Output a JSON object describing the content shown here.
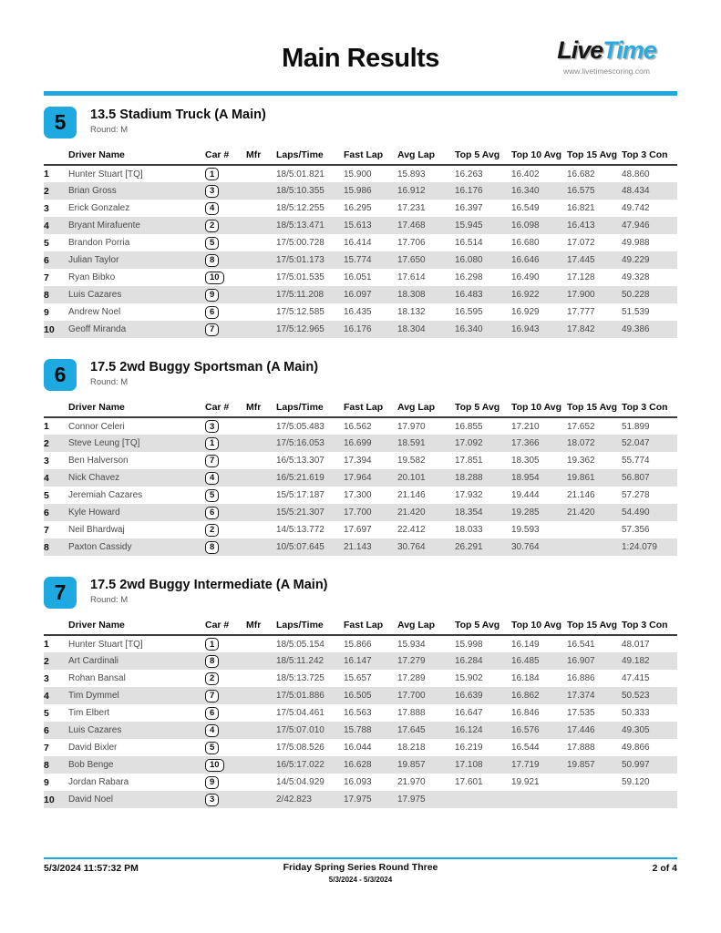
{
  "header": {
    "title": "Main Results",
    "logo": {
      "live": "Live",
      "time": "Time",
      "tagline": "www.livetimescoring.com"
    }
  },
  "colors": {
    "accent_blue": "#1fa7de",
    "logo_blue": "#29abe2",
    "row_stripe": "#e0e0e0"
  },
  "columns": [
    {
      "key": "driver",
      "label": "Driver Name"
    },
    {
      "key": "car",
      "label": "Car #"
    },
    {
      "key": "mfr",
      "label": "Mfr"
    },
    {
      "key": "laps",
      "label": "Laps/Time"
    },
    {
      "key": "fast",
      "label": "Fast Lap"
    },
    {
      "key": "avg",
      "label": "Avg Lap"
    },
    {
      "key": "top5",
      "label": "Top 5 Avg"
    },
    {
      "key": "top10",
      "label": "Top 10 Avg"
    },
    {
      "key": "top15",
      "label": "Top 15 Avg"
    },
    {
      "key": "top3",
      "label": "Top 3 Con"
    }
  ],
  "sections": [
    {
      "number": "5",
      "title": "13.5 Stadium Truck (A Main)",
      "round": "Round: M",
      "rows": [
        {
          "pos": "1",
          "driver": "Hunter Stuart [TQ]",
          "car": "1",
          "mfr": "",
          "laps": "18/5:01.821",
          "fast": "15.900",
          "avg": "15.893",
          "top5": "16.263",
          "top10": "16.402",
          "top15": "16.682",
          "top3": "48.860"
        },
        {
          "pos": "2",
          "driver": "Brian Gross",
          "car": "3",
          "mfr": "",
          "laps": "18/5:10.355",
          "fast": "15.986",
          "avg": "16.912",
          "top5": "16.176",
          "top10": "16.340",
          "top15": "16.575",
          "top3": "48.434"
        },
        {
          "pos": "3",
          "driver": "Erick Gonzalez",
          "car": "4",
          "mfr": "",
          "laps": "18/5:12.255",
          "fast": "16.295",
          "avg": "17.231",
          "top5": "16.397",
          "top10": "16.549",
          "top15": "16.821",
          "top3": "49.742"
        },
        {
          "pos": "4",
          "driver": "Bryant Mirafuente",
          "car": "2",
          "mfr": "",
          "laps": "18/5:13.471",
          "fast": "15.613",
          "avg": "17.468",
          "top5": "15.945",
          "top10": "16.098",
          "top15": "16.413",
          "top3": "47.946"
        },
        {
          "pos": "5",
          "driver": "Brandon Porria",
          "car": "5",
          "mfr": "",
          "laps": "17/5:00.728",
          "fast": "16.414",
          "avg": "17.706",
          "top5": "16.514",
          "top10": "16.680",
          "top15": "17.072",
          "top3": "49.988"
        },
        {
          "pos": "6",
          "driver": "Julian Taylor",
          "car": "8",
          "mfr": "",
          "laps": "17/5:01.173",
          "fast": "15.774",
          "avg": "17.650",
          "top5": "16.080",
          "top10": "16.646",
          "top15": "17.445",
          "top3": "49.229"
        },
        {
          "pos": "7",
          "driver": "Ryan Bibko",
          "car": "10",
          "mfr": "",
          "laps": "17/5:01.535",
          "fast": "16.051",
          "avg": "17.614",
          "top5": "16.298",
          "top10": "16.490",
          "top15": "17.128",
          "top3": "49.328"
        },
        {
          "pos": "8",
          "driver": "Luis Cazares",
          "car": "9",
          "mfr": "",
          "laps": "17/5:11.208",
          "fast": "16.097",
          "avg": "18.308",
          "top5": "16.483",
          "top10": "16.922",
          "top15": "17.900",
          "top3": "50.228"
        },
        {
          "pos": "9",
          "driver": "Andrew Noel",
          "car": "6",
          "mfr": "",
          "laps": "17/5:12.585",
          "fast": "16.435",
          "avg": "18.132",
          "top5": "16.595",
          "top10": "16.929",
          "top15": "17.777",
          "top3": "51.539"
        },
        {
          "pos": "10",
          "driver": "Geoff Miranda",
          "car": "7",
          "mfr": "",
          "laps": "17/5:12.965",
          "fast": "16.176",
          "avg": "18.304",
          "top5": "16.340",
          "top10": "16.943",
          "top15": "17.842",
          "top3": "49.386"
        }
      ]
    },
    {
      "number": "6",
      "title": "17.5 2wd Buggy Sportsman  (A Main)",
      "round": "Round: M",
      "rows": [
        {
          "pos": "1",
          "driver": "Connor Celeri",
          "car": "3",
          "mfr": "",
          "laps": "17/5:05.483",
          "fast": "16.562",
          "avg": "17.970",
          "top5": "16.855",
          "top10": "17.210",
          "top15": "17.652",
          "top3": "51.899"
        },
        {
          "pos": "2",
          "driver": "Steve Leung [TQ]",
          "car": "1",
          "mfr": "",
          "laps": "17/5:16.053",
          "fast": "16.699",
          "avg": "18.591",
          "top5": "17.092",
          "top10": "17.366",
          "top15": "18.072",
          "top3": "52.047"
        },
        {
          "pos": "3",
          "driver": "Ben Halverson",
          "car": "7",
          "mfr": "",
          "laps": "16/5:13.307",
          "fast": "17.394",
          "avg": "19.582",
          "top5": "17.851",
          "top10": "18.305",
          "top15": "19.362",
          "top3": "55.774"
        },
        {
          "pos": "4",
          "driver": "Nick Chavez",
          "car": "4",
          "mfr": "",
          "laps": "16/5:21.619",
          "fast": "17.964",
          "avg": "20.101",
          "top5": "18.288",
          "top10": "18.954",
          "top15": "19.861",
          "top3": "56.807"
        },
        {
          "pos": "5",
          "driver": "Jeremiah Cazares",
          "car": "5",
          "mfr": "",
          "laps": "15/5:17.187",
          "fast": "17.300",
          "avg": "21.146",
          "top5": "17.932",
          "top10": "19.444",
          "top15": "21.146",
          "top3": "57.278"
        },
        {
          "pos": "6",
          "driver": "Kyle Howard",
          "car": "6",
          "mfr": "",
          "laps": "15/5:21.307",
          "fast": "17.700",
          "avg": "21.420",
          "top5": "18.354",
          "top10": "19.285",
          "top15": "21.420",
          "top3": "54.490"
        },
        {
          "pos": "7",
          "driver": "Neil Bhardwaj",
          "car": "2",
          "mfr": "",
          "laps": "14/5:13.772",
          "fast": "17.697",
          "avg": "22.412",
          "top5": "18.033",
          "top10": "19.593",
          "top15": "",
          "top3": "57.356"
        },
        {
          "pos": "8",
          "driver": "Paxton Cassidy",
          "car": "8",
          "mfr": "",
          "laps": "10/5:07.645",
          "fast": "21.143",
          "avg": "30.764",
          "top5": "26.291",
          "top10": "30.764",
          "top15": "",
          "top3": "1:24.079"
        }
      ]
    },
    {
      "number": "7",
      "title": "17.5 2wd Buggy Intermediate (A Main)",
      "round": "Round: M",
      "rows": [
        {
          "pos": "1",
          "driver": "Hunter Stuart [TQ]",
          "car": "1",
          "mfr": "",
          "laps": "18/5:05.154",
          "fast": "15.866",
          "avg": "15.934",
          "top5": "15.998",
          "top10": "16.149",
          "top15": "16.541",
          "top3": "48.017"
        },
        {
          "pos": "2",
          "driver": "Art Cardinali",
          "car": "8",
          "mfr": "",
          "laps": "18/5:11.242",
          "fast": "16.147",
          "avg": "17.279",
          "top5": "16.284",
          "top10": "16.485",
          "top15": "16.907",
          "top3": "49.182"
        },
        {
          "pos": "3",
          "driver": "Rohan Bansal",
          "car": "2",
          "mfr": "",
          "laps": "18/5:13.725",
          "fast": "15.657",
          "avg": "17.289",
          "top5": "15.902",
          "top10": "16.184",
          "top15": "16.886",
          "top3": "47.415"
        },
        {
          "pos": "4",
          "driver": "Tim Dymmel",
          "car": "7",
          "mfr": "",
          "laps": "17/5:01.886",
          "fast": "16.505",
          "avg": "17.700",
          "top5": "16.639",
          "top10": "16.862",
          "top15": "17.374",
          "top3": "50.523"
        },
        {
          "pos": "5",
          "driver": "Tim Elbert",
          "car": "6",
          "mfr": "",
          "laps": "17/5:04.461",
          "fast": "16.563",
          "avg": "17.888",
          "top5": "16.647",
          "top10": "16.846",
          "top15": "17.535",
          "top3": "50.333"
        },
        {
          "pos": "6",
          "driver": "Luis Cazares",
          "car": "4",
          "mfr": "",
          "laps": "17/5:07.010",
          "fast": "15.788",
          "avg": "17.645",
          "top5": "16.124",
          "top10": "16.576",
          "top15": "17.446",
          "top3": "49.305"
        },
        {
          "pos": "7",
          "driver": "David Bixler",
          "car": "5",
          "mfr": "",
          "laps": "17/5:08.526",
          "fast": "16.044",
          "avg": "18.218",
          "top5": "16.219",
          "top10": "16.544",
          "top15": "17.888",
          "top3": "49.866"
        },
        {
          "pos": "8",
          "driver": "Bob Benge",
          "car": "10",
          "mfr": "",
          "laps": "16/5:17.022",
          "fast": "16.628",
          "avg": "19.857",
          "top5": "17.108",
          "top10": "17.719",
          "top15": "19.857",
          "top3": "50.997"
        },
        {
          "pos": "9",
          "driver": "Jordan Rabara",
          "car": "9",
          "mfr": "",
          "laps": "14/5:04.929",
          "fast": "16.093",
          "avg": "21.970",
          "top5": "17.601",
          "top10": "19.921",
          "top15": "",
          "top3": "59.120"
        },
        {
          "pos": "10",
          "driver": "David Noel",
          "car": "3",
          "mfr": "",
          "laps": "2/42.823",
          "fast": "17.975",
          "avg": "17.975",
          "top5": "",
          "top10": "",
          "top15": "",
          "top3": ""
        }
      ]
    }
  ],
  "footer": {
    "printed": "5/3/2024 11:57:32 PM",
    "event": "Friday Spring Series Round Three",
    "dates": "5/3/2024 - 5/3/2024",
    "page": "2 of 4"
  }
}
